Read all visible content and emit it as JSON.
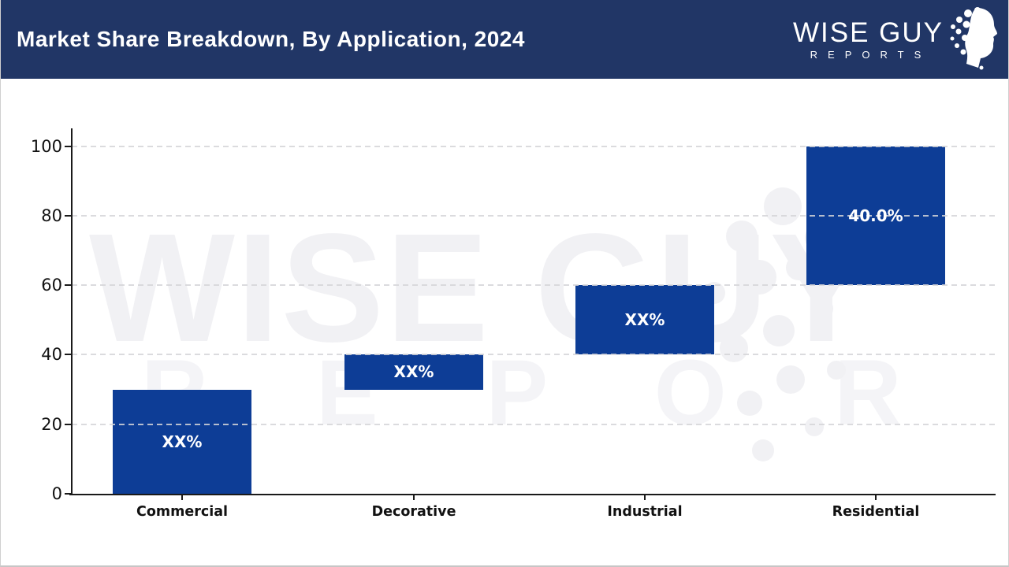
{
  "header": {
    "title": "Market Share Breakdown, By Application, 2024",
    "bg_color": "#213666",
    "logo": {
      "line1": "WISE GUY",
      "line2": "REPORTS"
    }
  },
  "watermark": {
    "line1": "WISE GUY",
    "line2": "R E P O R T S"
  },
  "chart_data": {
    "type": "bar",
    "subtype": "waterfall",
    "title": "",
    "xlabel": "",
    "ylabel": "",
    "categories": [
      "Commercial",
      "Decorative",
      "Industrial",
      "Residential"
    ],
    "segments": [
      {
        "category": "Commercial",
        "start": 0,
        "end": 30,
        "label": "XX%"
      },
      {
        "category": "Decorative",
        "start": 30,
        "end": 40,
        "label": "XX%"
      },
      {
        "category": "Industrial",
        "start": 40,
        "end": 60,
        "label": "XX%"
      },
      {
        "category": "Residential",
        "start": 60,
        "end": 100,
        "label": "40.0%"
      }
    ],
    "yticks": [
      0,
      20,
      40,
      60,
      80,
      100
    ],
    "ylim": [
      0,
      100
    ],
    "bar_color": "#0d3d96",
    "grid": "horizontal-dashed",
    "legend": "none"
  }
}
